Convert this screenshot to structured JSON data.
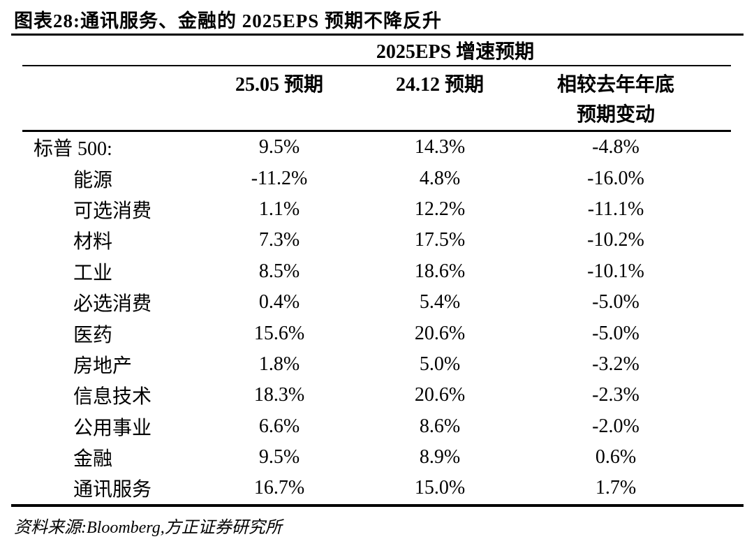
{
  "figure": {
    "title": "图表28:通讯服务、金融的 2025EPS 预期不降反升",
    "source": "资料来源:Bloomberg,方正证券研究所"
  },
  "chart_data": {
    "type": "table",
    "group_header": "2025EPS 增速预期",
    "column_headers": {
      "col1": "25.05 预期",
      "col2": "24.12 预期",
      "col3_line1": "相较去年年底",
      "col3_line2": "预期变动"
    },
    "rows": [
      {
        "label": "标普 500:",
        "indent": false,
        "v1": "9.5%",
        "v2": "14.3%",
        "v3": "-4.8%"
      },
      {
        "label": "能源",
        "indent": true,
        "v1": "-11.2%",
        "v2": "4.8%",
        "v3": "-16.0%"
      },
      {
        "label": "可选消费",
        "indent": true,
        "v1": "1.1%",
        "v2": "12.2%",
        "v3": "-11.1%"
      },
      {
        "label": "材料",
        "indent": true,
        "v1": "7.3%",
        "v2": "17.5%",
        "v3": "-10.2%"
      },
      {
        "label": "工业",
        "indent": true,
        "v1": "8.5%",
        "v2": "18.6%",
        "v3": "-10.1%"
      },
      {
        "label": "必选消费",
        "indent": true,
        "v1": "0.4%",
        "v2": "5.4%",
        "v3": "-5.0%"
      },
      {
        "label": "医药",
        "indent": true,
        "v1": "15.6%",
        "v2": "20.6%",
        "v3": "-5.0%"
      },
      {
        "label": "房地产",
        "indent": true,
        "v1": "1.8%",
        "v2": "5.0%",
        "v3": "-3.2%"
      },
      {
        "label": "信息技术",
        "indent": true,
        "v1": "18.3%",
        "v2": "20.6%",
        "v3": "-2.3%"
      },
      {
        "label": "公用事业",
        "indent": true,
        "v1": "6.6%",
        "v2": "8.6%",
        "v3": "-2.0%"
      },
      {
        "label": "金融",
        "indent": true,
        "v1": "9.5%",
        "v2": "8.9%",
        "v3": "0.6%"
      },
      {
        "label": "通讯服务",
        "indent": true,
        "v1": "16.7%",
        "v2": "15.0%",
        "v3": "1.7%"
      }
    ],
    "colors": {
      "text": "#000000",
      "background": "#ffffff",
      "rule": "#000000"
    }
  }
}
